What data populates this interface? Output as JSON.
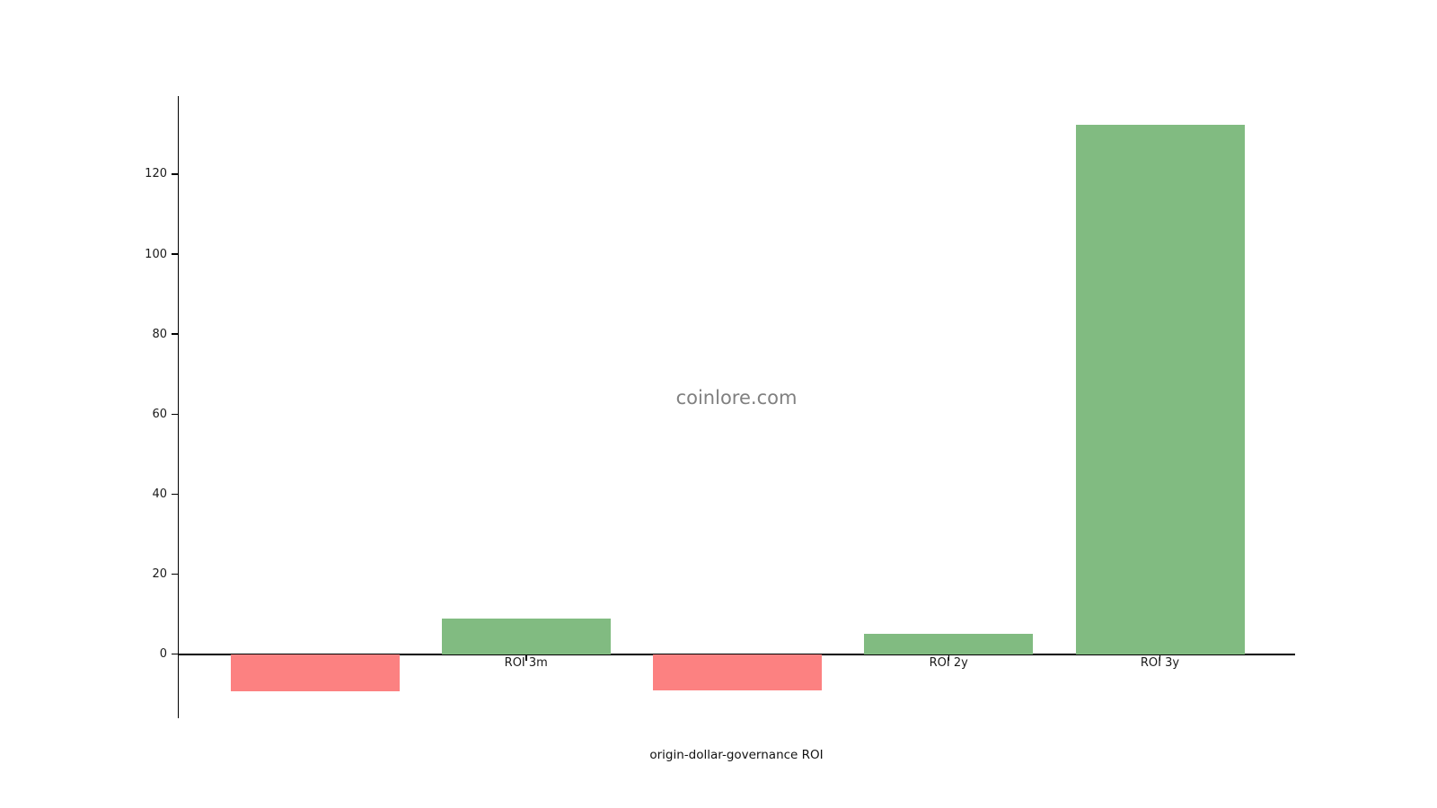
{
  "watermark": {
    "text": "coinlore.com",
    "color": "#808080"
  },
  "title": {
    "text": "origin-dollar-governance ROI"
  },
  "chart_data": {
    "type": "bar",
    "title": "origin-dollar-governance ROI",
    "categories": [
      "",
      "ROI 3m",
      "",
      "ROI 2y",
      "ROI 3y"
    ],
    "values": [
      -9.3,
      8.9,
      -9.1,
      5.0,
      132.4
    ],
    "bar_colors": [
      "#fc8181",
      "#81bb81",
      "#fc8181",
      "#81bb81",
      "#81bb81"
    ],
    "positive_color": "#81bb81",
    "negative_color": "#fc8181",
    "xlabel": "",
    "ylabel": "",
    "yticks": [
      0,
      20,
      40,
      60,
      80,
      100,
      120
    ],
    "ylim": [
      -16,
      139.5
    ],
    "grid": false,
    "legend_position": "none",
    "watermark": "coinlore.com"
  }
}
